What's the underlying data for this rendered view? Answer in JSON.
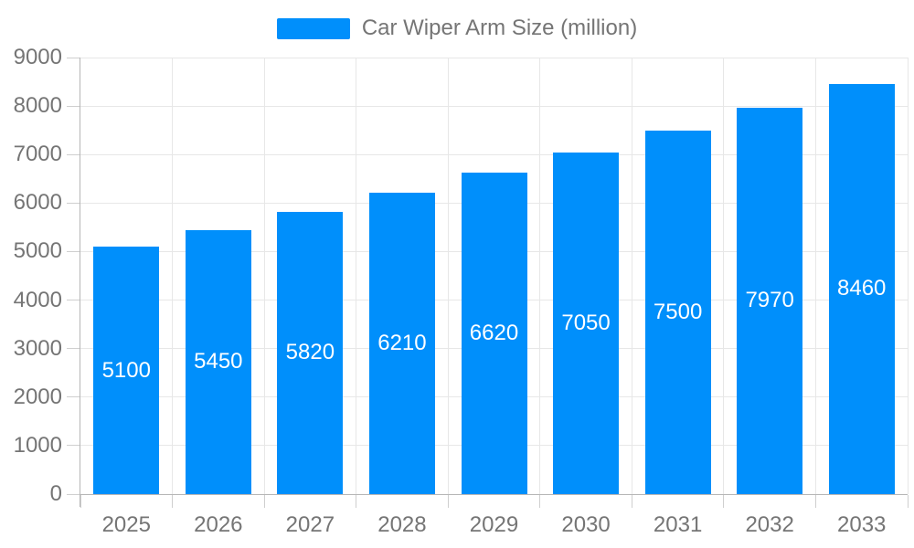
{
  "legend": {
    "label": "Car Wiper Arm Size (million)"
  },
  "chart_data": {
    "type": "bar",
    "categories": [
      "2025",
      "2026",
      "2027",
      "2028",
      "2029",
      "2030",
      "2031",
      "2032",
      "2033"
    ],
    "values": [
      5100,
      5450,
      5820,
      6210,
      6620,
      7050,
      7500,
      7970,
      8460
    ],
    "title": "Car Wiper Arm Size (million)",
    "xlabel": "",
    "ylabel": "",
    "ylim": [
      0,
      9000
    ],
    "ytick_step": 1000,
    "grid": true,
    "legend_position": "top",
    "data_labels": "inside-center-white"
  },
  "colors": {
    "bar": "#008FFB",
    "axis_text": "#757575",
    "grid": "#e7e7e7",
    "axis_line": "#b6b6b6",
    "tick": "#cfcfcf",
    "value_label": "#ffffff",
    "background": "#ffffff"
  }
}
